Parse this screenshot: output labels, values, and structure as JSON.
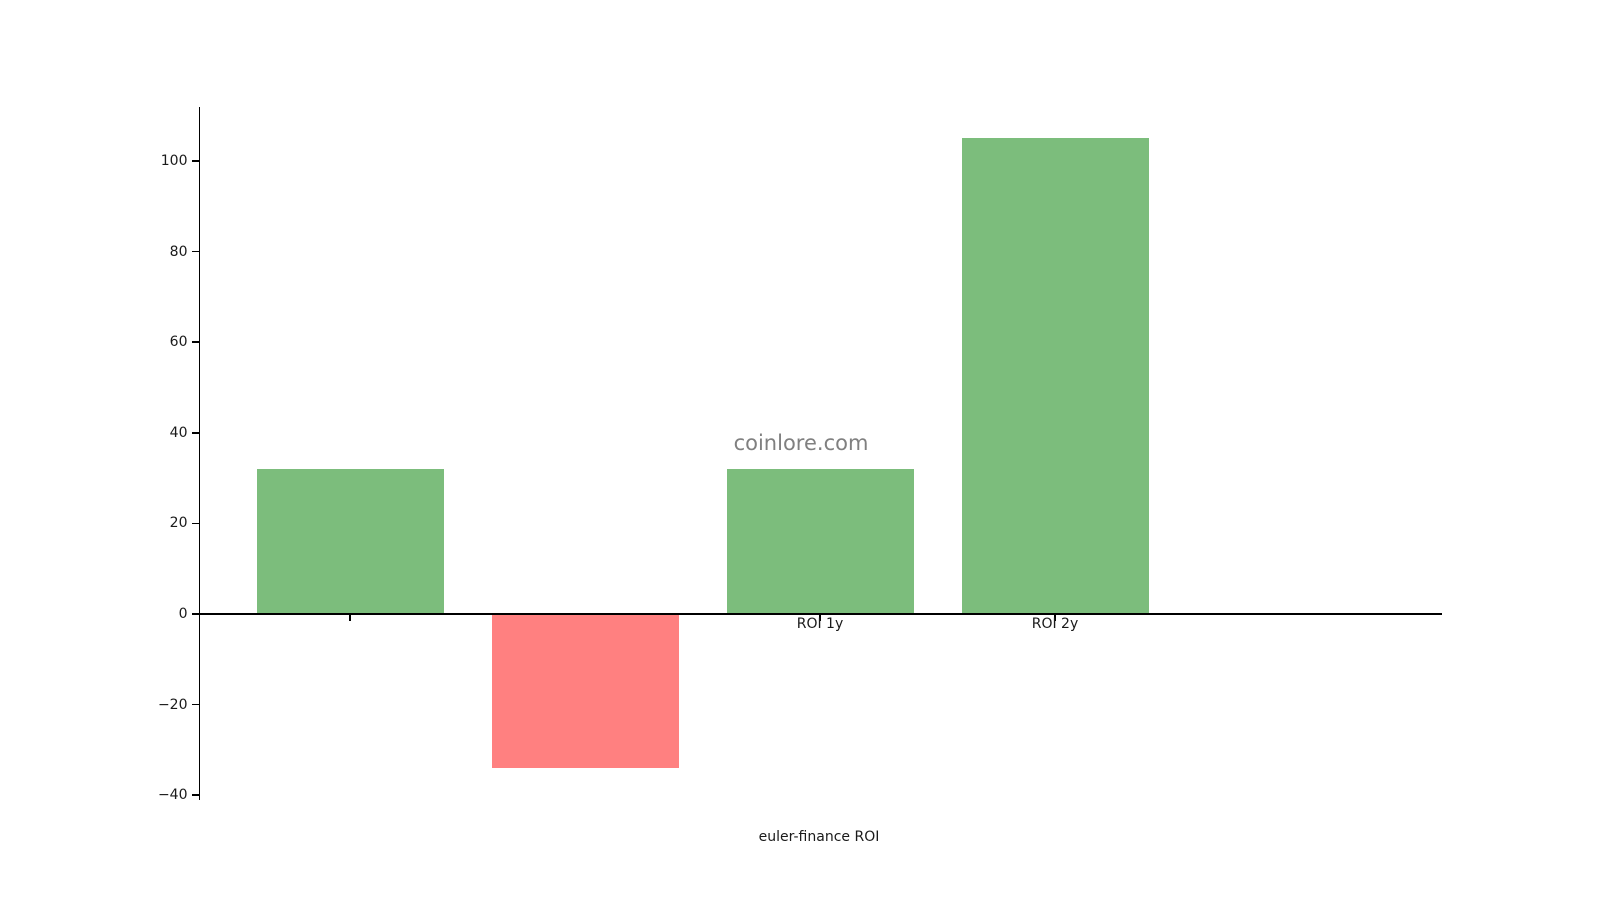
{
  "chart_data": {
    "type": "bar",
    "categories": [
      "",
      "",
      "ROI 1y",
      "ROI 2y"
    ],
    "values": [
      32,
      -34,
      32,
      105
    ],
    "xlabel": "euler-finance ROI",
    "ylabel": "",
    "ylim": [
      -41,
      112
    ],
    "yticks": [
      -40,
      -20,
      0,
      20,
      40,
      60,
      80,
      100
    ],
    "grid": false,
    "legend": "none",
    "watermark": "coinlore.com",
    "colors": {
      "positive_bar": "#7cbd7c",
      "negative_bar": "#ff8080",
      "axis_line": "#000000",
      "tick_text": "#1a1a1a",
      "watermark_text": "#808080"
    }
  }
}
